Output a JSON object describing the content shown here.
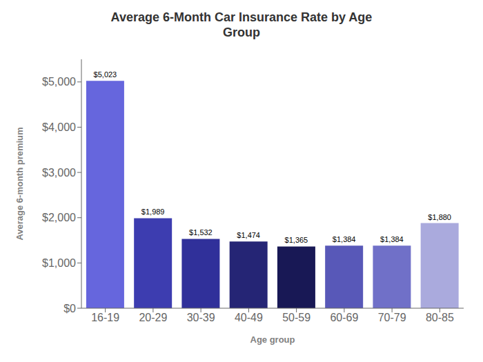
{
  "chart_data": {
    "type": "bar",
    "title": "Average 6-Month Car Insurance Rate by Age\nGroup",
    "xlabel": "Age group",
    "ylabel": "Average 6-month premium",
    "categories": [
      "16-19",
      "20-29",
      "30-39",
      "40-49",
      "50-59",
      "60-69",
      "70-79",
      "80-85"
    ],
    "values": [
      5023,
      1989,
      1532,
      1474,
      1365,
      1384,
      1384,
      1880
    ],
    "value_labels": [
      "$5,023",
      "$1,989",
      "$1,532",
      "$1,474",
      "$1,365",
      "$1,384",
      "$1,384",
      "$1,880"
    ],
    "colors": [
      "#6666DD",
      "#3D3DB0",
      "#30309A",
      "#252575",
      "#181855",
      "#5858B8",
      "#7070C8",
      "#AAAADD"
    ],
    "ylim": [
      0,
      5500
    ],
    "yticks": [
      {
        "value": 0,
        "label": "$0"
      },
      {
        "value": 1000,
        "label": "$1,000"
      },
      {
        "value": 2000,
        "label": "$2,000"
      },
      {
        "value": 3000,
        "label": "$3,000"
      },
      {
        "value": 4000,
        "label": "$4,000"
      },
      {
        "value": 5000,
        "label": "$5,000"
      }
    ],
    "data_labels": true,
    "grid": false
  }
}
